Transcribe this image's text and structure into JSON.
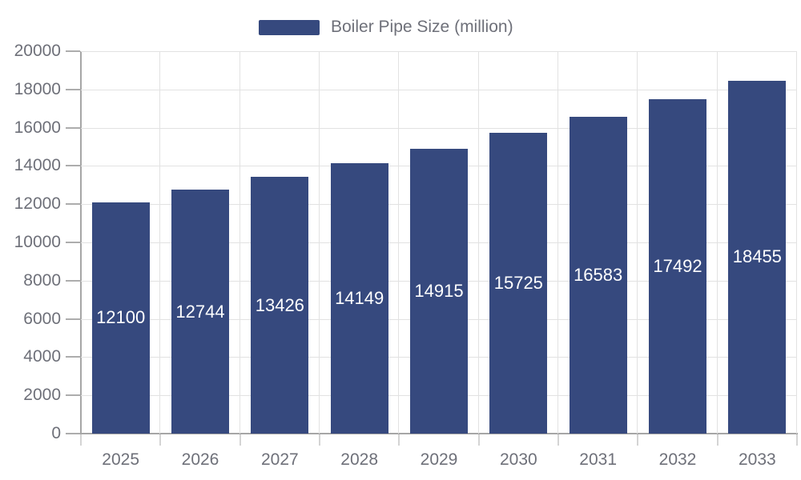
{
  "chart_data": {
    "type": "bar",
    "title": "",
    "legend": "Boiler Pipe Size (million)",
    "legend_position": "top-center",
    "categories": [
      "2025",
      "2026",
      "2027",
      "2028",
      "2029",
      "2030",
      "2031",
      "2032",
      "2033"
    ],
    "series": [
      {
        "name": "Boiler Pipe Size (million)",
        "values": [
          12100,
          12744,
          13426,
          14149,
          14915,
          15725,
          16583,
          17492,
          18455
        ]
      }
    ],
    "xlabel": "",
    "ylabel": "",
    "ylim": [
      0,
      20000
    ],
    "yticks": [
      0,
      2000,
      4000,
      6000,
      8000,
      10000,
      12000,
      14000,
      16000,
      18000,
      20000
    ],
    "grid": "on",
    "bar_color": "#36497E",
    "bar_value_label_color": "#ffffff",
    "axis_label_color": "#6E7079",
    "axis_line_color": "#A6A6A6",
    "grid_color": "#E2E2E2"
  }
}
